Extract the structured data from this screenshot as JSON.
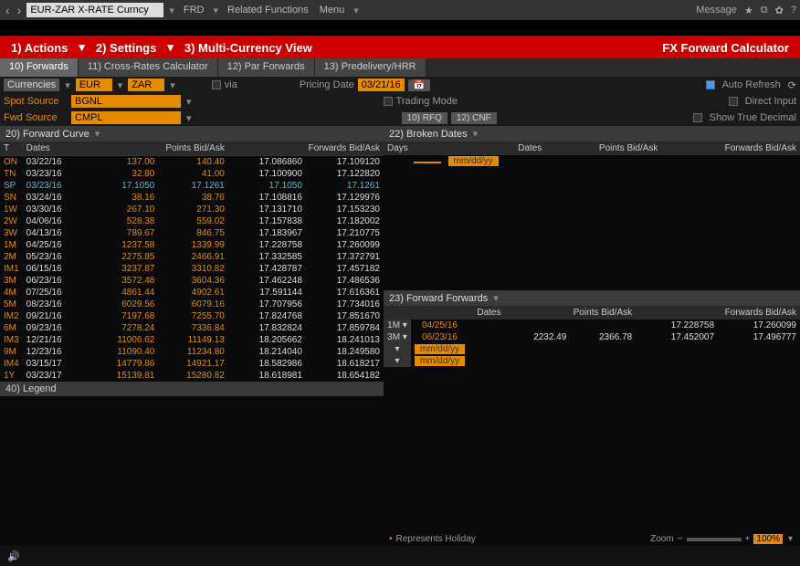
{
  "topbar": {
    "security": "EUR-ZAR X-RATE Curncy",
    "frd": "FRD",
    "related": "Related Functions",
    "menu": "Menu",
    "message": "Message"
  },
  "redbar": {
    "actions": "1) Actions",
    "settings": "2) Settings",
    "mcv": "3) Multi-Currency View",
    "title": "FX Forward Calculator"
  },
  "tabs": {
    "t1": "10) Forwards",
    "t2": "11) Cross-Rates Calculator",
    "t3": "12) Par Forwards",
    "t4": "13) Predelivery/HRR"
  },
  "params": {
    "currencies_lbl": "Currencies",
    "ccy1": "EUR",
    "ccy2": "ZAR",
    "via": "via",
    "pricing_date_lbl": "Pricing Date",
    "pricing_date": "03/21/16",
    "trading_mode": "Trading Mode",
    "rfq": "10) RFQ",
    "cnf": "12) CNF",
    "auto_refresh": "Auto Refresh",
    "direct_input": "Direct Input",
    "show_true_decimal": "Show True Decimal",
    "spot_source_lbl": "Spot Source",
    "spot_source": "BGNL",
    "fwd_source_lbl": "Fwd Source",
    "fwd_source": "CMPL"
  },
  "left": {
    "header": "20) Forward Curve",
    "legend": "40) Legend",
    "col_t": "T",
    "col_dates": "Dates",
    "col_points": "Points Bid/Ask",
    "col_fwd": "Forwards Bid/Ask",
    "rows": [
      {
        "t": "ON",
        "d": "03/22/16",
        "pb": "137.00",
        "pa": "140.40",
        "fb": "17.086860",
        "fa": "17.109120"
      },
      {
        "t": "TN",
        "d": "03/23/16",
        "pb": "32.80",
        "pa": "41.00",
        "fb": "17.100900",
        "fa": "17.122820"
      },
      {
        "t": "SP",
        "d": "03/23/16",
        "pb": "17.1050",
        "pa": "17.1261",
        "fb": "17.1050",
        "fa": "17.1261",
        "sp": true
      },
      {
        "t": "SN",
        "d": "03/24/16",
        "pb": "38.16",
        "pa": "38.76",
        "fb": "17.108816",
        "fa": "17.129976"
      },
      {
        "t": "1W",
        "d": "03/30/16",
        "pb": "267.10",
        "pa": "271.30",
        "fb": "17.131710",
        "fa": "17.153230"
      },
      {
        "t": "2W",
        "d": "04/06/16",
        "pb": "528.38",
        "pa": "559.02",
        "fb": "17.157838",
        "fa": "17.182002"
      },
      {
        "t": "3W",
        "d": "04/13/16",
        "pb": "789.67",
        "pa": "846.75",
        "fb": "17.183967",
        "fa": "17.210775"
      },
      {
        "t": "1M",
        "d": "04/25/16",
        "pb": "1237.58",
        "pa": "1339.99",
        "fb": "17.228758",
        "fa": "17.260099"
      },
      {
        "t": "2M",
        "d": "05/23/16",
        "pb": "2275.85",
        "pa": "2466.91",
        "fb": "17.332585",
        "fa": "17.372791"
      },
      {
        "t": "IM1",
        "d": "06/15/16",
        "pb": "3237.87",
        "pa": "3310.82",
        "fb": "17.428787",
        "fa": "17.457182"
      },
      {
        "t": "3M",
        "d": "06/23/16",
        "pb": "3572.48",
        "pa": "3604.36",
        "fb": "17.462248",
        "fa": "17.486536"
      },
      {
        "t": "4M",
        "d": "07/25/16",
        "pb": "4861.44",
        "pa": "4902.61",
        "fb": "17.591144",
        "fa": "17.616361"
      },
      {
        "t": "5M",
        "d": "08/23/16",
        "pb": "6029.56",
        "pa": "6079.16",
        "fb": "17.707956",
        "fa": "17.734016"
      },
      {
        "t": "IM2",
        "d": "09/21/16",
        "pb": "7197.68",
        "pa": "7255.70",
        "fb": "17.824768",
        "fa": "17.851670"
      },
      {
        "t": "6M",
        "d": "09/23/16",
        "pb": "7278.24",
        "pa": "7336.84",
        "fb": "17.832824",
        "fa": "17.859784"
      },
      {
        "t": "IM3",
        "d": "12/21/16",
        "pb": "11006.62",
        "pa": "11149.13",
        "fb": "18.205662",
        "fa": "18.241013"
      },
      {
        "t": "9M",
        "d": "12/23/16",
        "pb": "11090.40",
        "pa": "11234.80",
        "fb": "18.214040",
        "fa": "18.249580"
      },
      {
        "t": "IM4",
        "d": "03/15/17",
        "pb": "14779.86",
        "pa": "14921.17",
        "fb": "18.582986",
        "fa": "18.618217"
      },
      {
        "t": "1Y",
        "d": "03/23/17",
        "pb": "15139.81",
        "pa": "15280.82",
        "fb": "18.618981",
        "fa": "18.654182"
      }
    ]
  },
  "broken": {
    "header": "22) Broken Dates",
    "col_days": "Days",
    "col_dates": "Dates",
    "col_points": "Points Bid/Ask",
    "col_fwd": "Forwards Bid/Ask",
    "placeholder": "mm/dd/yy"
  },
  "ff": {
    "header": "23) Forward Forwards",
    "col_dates": "Dates",
    "col_points": "Points Bid/Ask",
    "col_fwd": "Forwards Bid/Ask",
    "rows": [
      {
        "lbl": "1M",
        "d": "04/25/16",
        "pb": "",
        "pa": "",
        "fb": "17.228758",
        "fa": "17.260099"
      },
      {
        "lbl": "3M",
        "d": "06/23/16",
        "pb": "2232.49",
        "pa": "2366.78",
        "fb": "17.452007",
        "fa": "17.496777"
      }
    ],
    "placeholder": "mm/dd/yy"
  },
  "footer": {
    "holiday": "Represents Holiday",
    "zoom_lbl": "Zoom",
    "zoom_pct": "100%"
  }
}
